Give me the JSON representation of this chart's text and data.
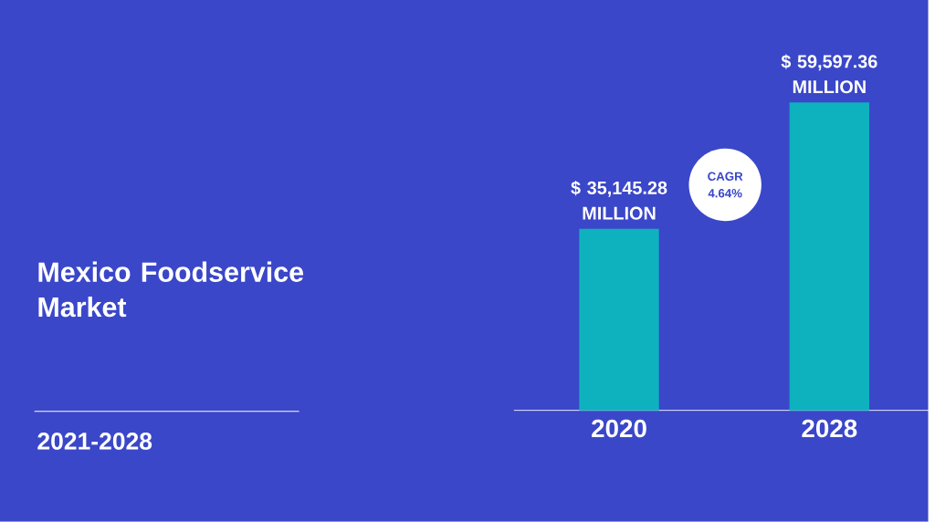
{
  "chart_data": {
    "type": "bar",
    "title": "Mexico Foodservice Market",
    "subtitle": "2021-2028",
    "categories": [
      "2020",
      "2028"
    ],
    "values": [
      35145.28,
      59597.36
    ],
    "value_labels": [
      "$ 35,145.28 MILLION",
      "$ 59,597.36 MILLION"
    ],
    "color": "#0eb1be",
    "annotations": [
      "CAGR 4.64%"
    ]
  }
}
